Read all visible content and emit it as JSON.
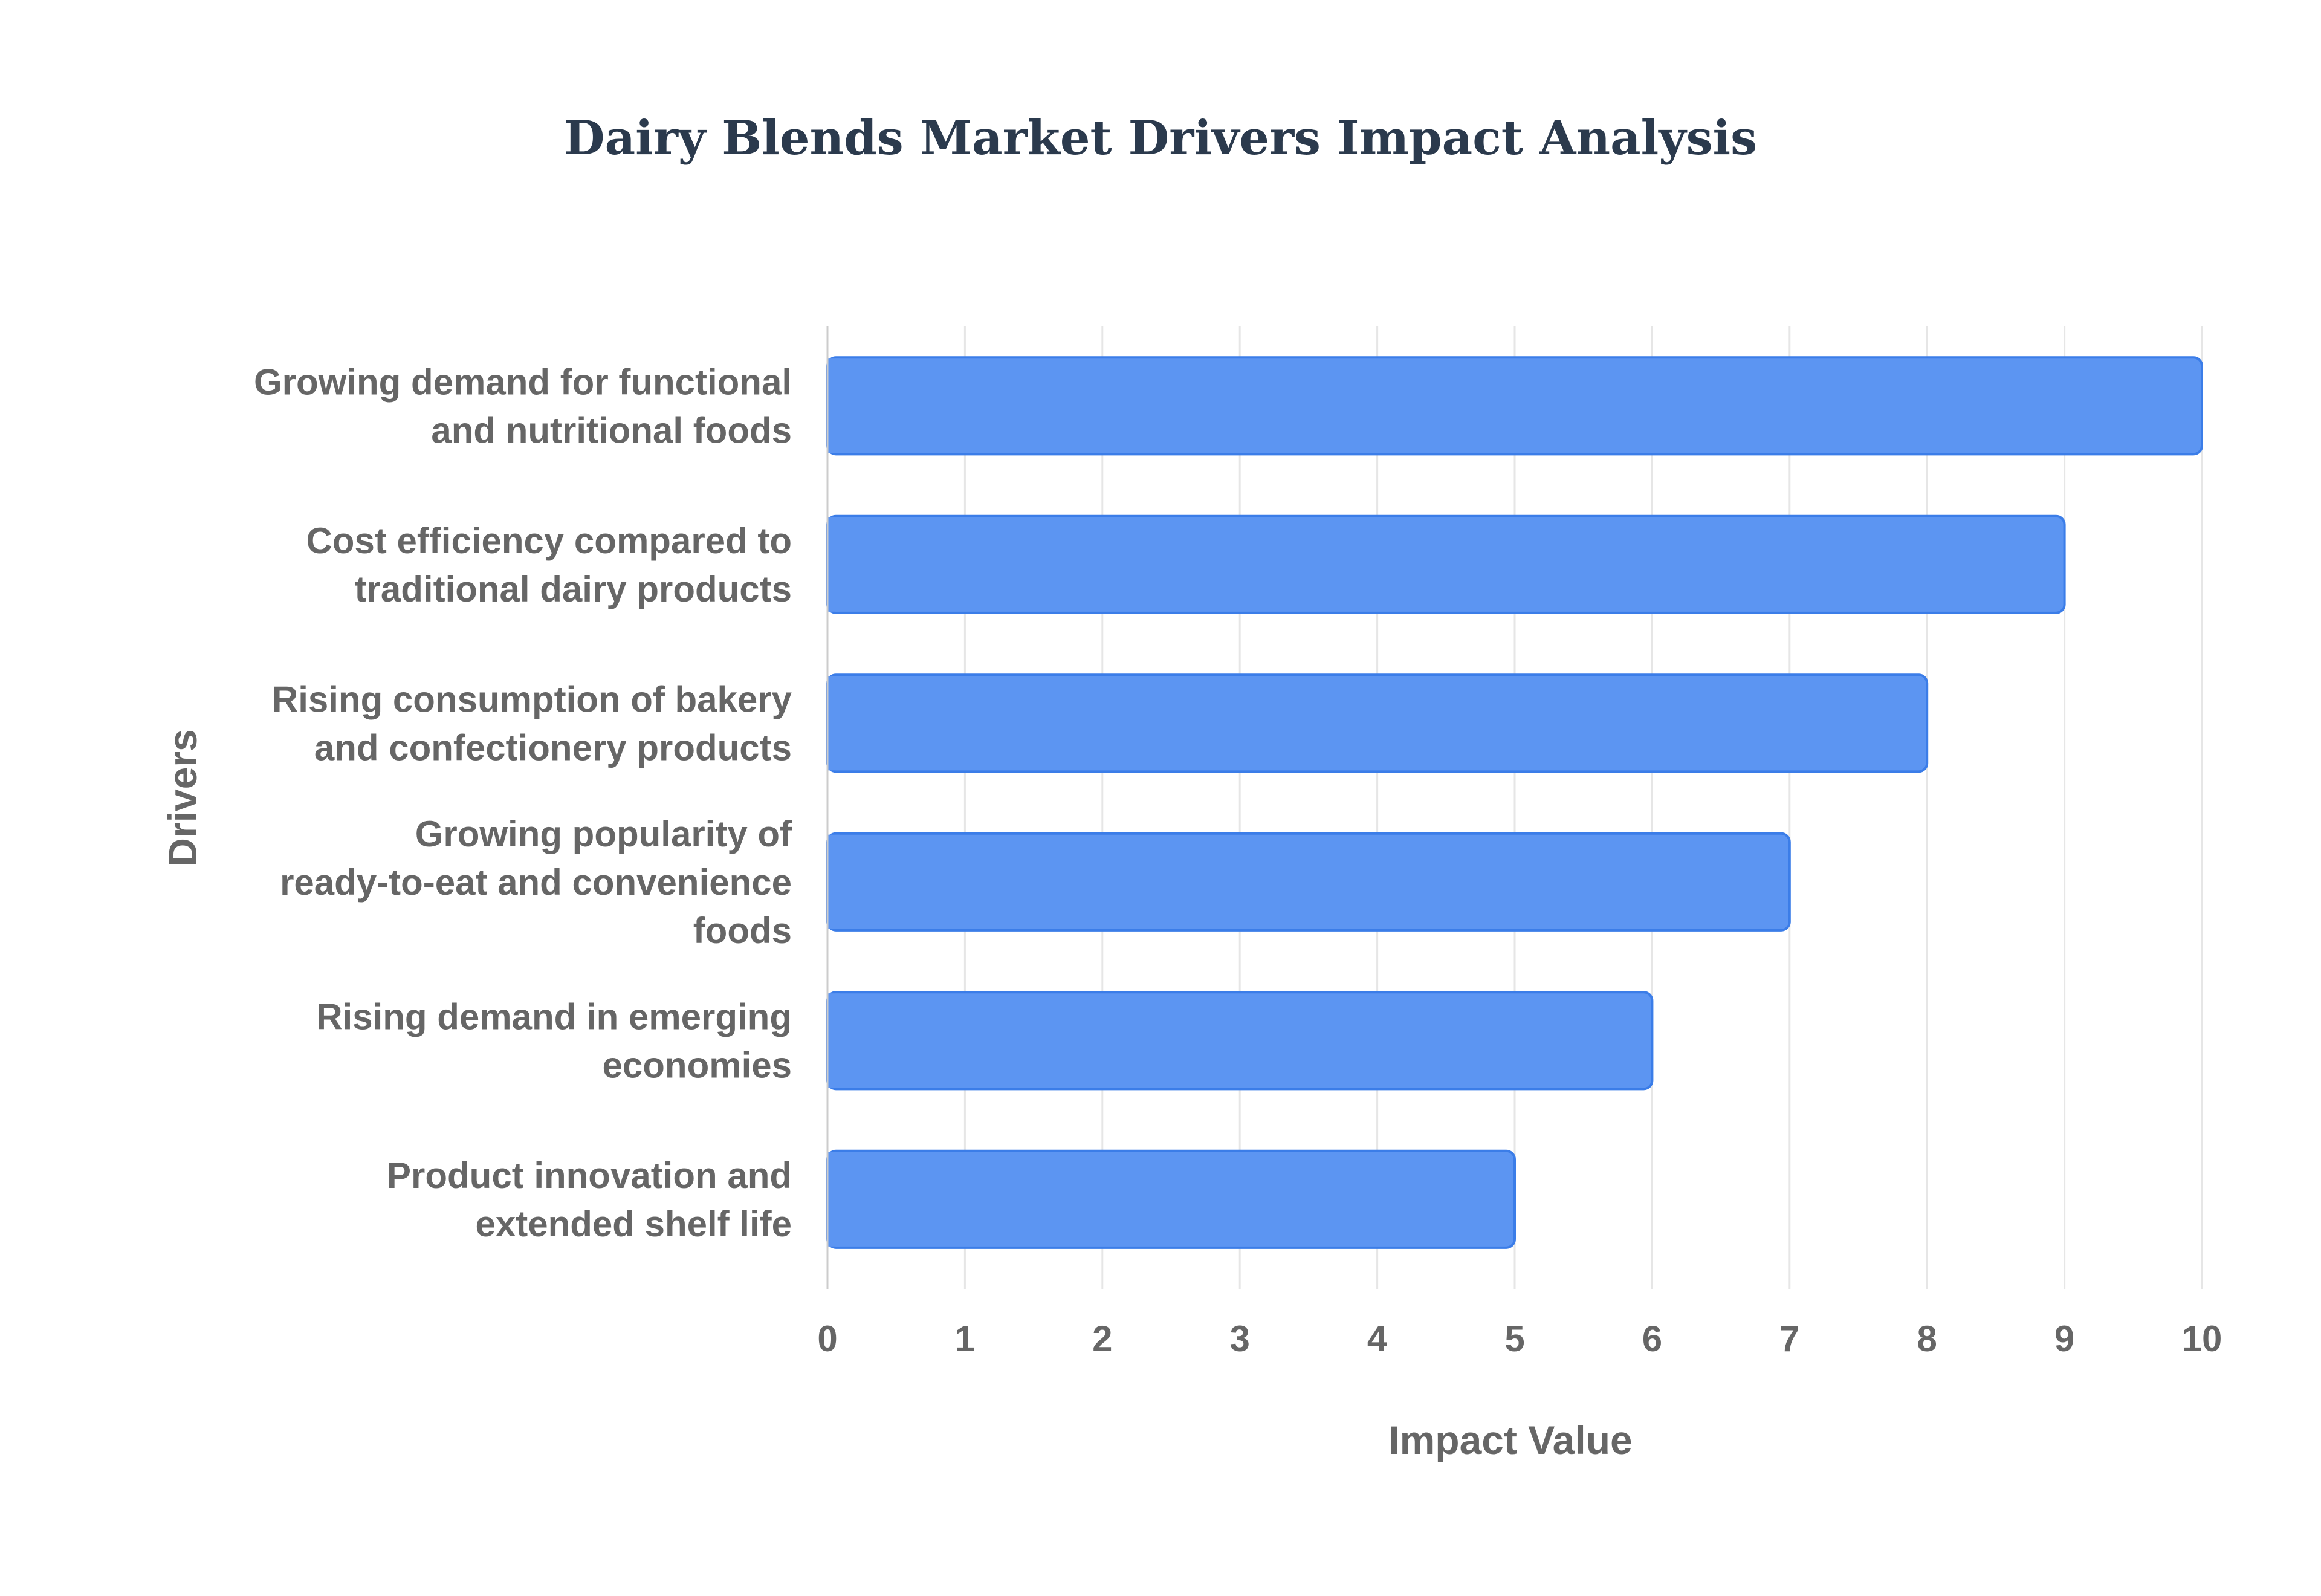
{
  "chart_data": {
    "type": "bar",
    "orientation": "horizontal",
    "title": "Dairy Blends Market Drivers Impact Analysis",
    "xlabel": "Impact Value",
    "ylabel": "Drivers",
    "xlim": [
      0,
      10
    ],
    "xticks": [
      0,
      1,
      2,
      3,
      4,
      5,
      6,
      7,
      8,
      9,
      10
    ],
    "grid": "vertical",
    "legend": "none",
    "bar_color": "#5c95f2",
    "bar_border_color": "#3b7de8",
    "categories": [
      [
        "Growing demand for functional",
        "and nutritional foods"
      ],
      [
        "Cost efficiency compared to",
        "traditional dairy products"
      ],
      [
        "Rising consumption of bakery",
        "and confectionery products"
      ],
      [
        "Growing popularity of",
        "ready-to-eat and convenience",
        "foods"
      ],
      [
        "Rising demand in emerging",
        "economies"
      ],
      [
        "Product innovation and",
        "extended shelf life"
      ]
    ],
    "values": [
      10,
      9,
      8,
      7,
      6,
      5
    ]
  }
}
